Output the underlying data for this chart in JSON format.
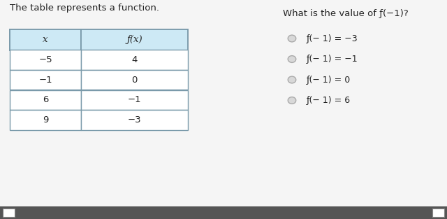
{
  "title_left": "The table represents a function.",
  "title_right": "What is the value of ƒ(−1)?",
  "col_header_x": "x",
  "col_header_fx": "ƒ(x)",
  "table_data": [
    [
      "−5",
      "4"
    ],
    [
      "−1",
      "0"
    ],
    [
      "6",
      "−1"
    ],
    [
      "9",
      "−3"
    ]
  ],
  "choices": [
    "ƒ(− 1) = −3",
    "ƒ(− 1) = −1",
    "ƒ(− 1) = 0",
    "ƒ(− 1) = 6"
  ],
  "header_bg": "#cde9f5",
  "cell_bg": "#ffffff",
  "border_color": "#7a9aaa",
  "text_color": "#222222",
  "bg_color": "#f5f5f5",
  "bottom_bar_color": "#555555",
  "radio_edge": "#aaaaaa",
  "radio_face": "#d8d8d8"
}
